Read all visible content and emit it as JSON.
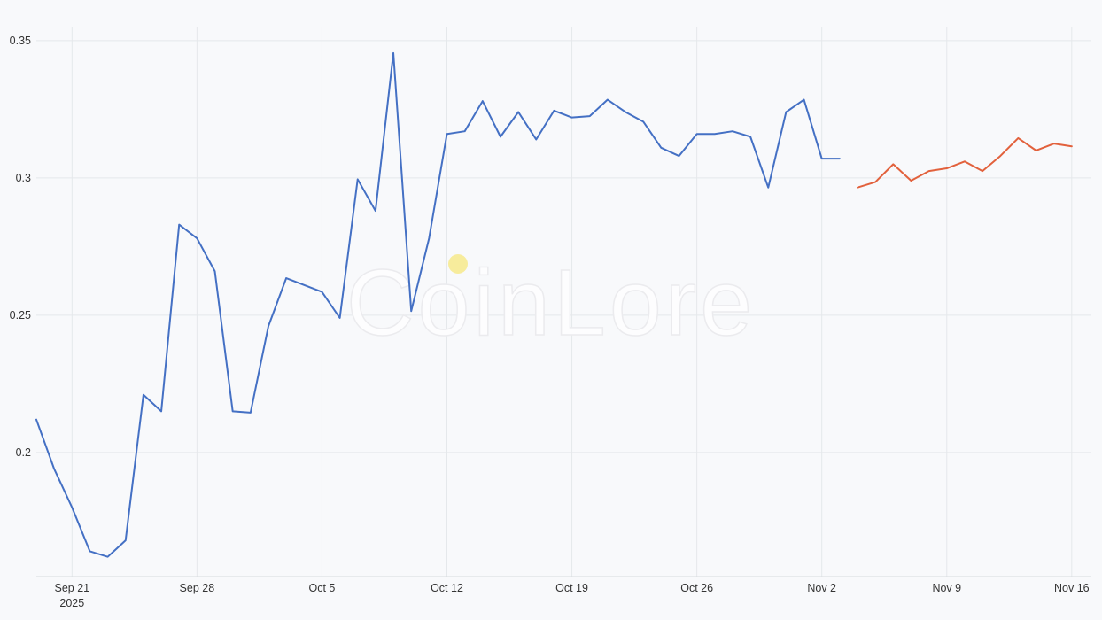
{
  "watermark": {
    "text": "CoinLore"
  },
  "chart_data": {
    "type": "line",
    "grid": true,
    "legend": "none",
    "y_axis": {
      "tick_values": [
        0.35,
        0.3,
        0.25,
        0.2
      ],
      "tick_labels": [
        "0.35",
        "0.3",
        "0.25",
        "0.2"
      ],
      "range": [
        0.1548,
        0.3548
      ]
    },
    "x_axis": {
      "tick_days": [
        2,
        9,
        16,
        23,
        30,
        37,
        44,
        51,
        58
      ],
      "tick_labels": [
        "Sep 21",
        "Sep 28",
        "Oct 5",
        "Oct 12",
        "Oct 19",
        "Oct 26",
        "Nov 2",
        "Nov 9",
        "Nov 16"
      ],
      "sub_label": "2025",
      "sub_label_tick_index": 0,
      "range_days": [
        0,
        59.1
      ]
    },
    "series": [
      {
        "name": "blue",
        "color": "#4470c4",
        "days": [
          0,
          1,
          2,
          3,
          4,
          5,
          6,
          7,
          8,
          9,
          10,
          11,
          12,
          13,
          14,
          15,
          16,
          17,
          18,
          19,
          20,
          21,
          22,
          23,
          24,
          25,
          26,
          27,
          28,
          29,
          30,
          31,
          32,
          33,
          34,
          35,
          36,
          37,
          38,
          39,
          40,
          41,
          42,
          43,
          44,
          45
        ],
        "values": [
          0.212,
          0.194,
          0.18,
          0.164,
          0.162,
          0.168,
          0.221,
          0.215,
          0.283,
          0.278,
          0.266,
          0.215,
          0.2145,
          0.246,
          0.2635,
          0.261,
          0.2585,
          0.249,
          0.2995,
          0.288,
          0.3455,
          0.2515,
          0.278,
          0.316,
          0.317,
          0.328,
          0.315,
          0.324,
          0.314,
          0.3245,
          0.322,
          0.3225,
          0.3285,
          0.324,
          0.3205,
          0.311,
          0.308,
          0.316,
          0.316,
          0.317,
          0.315,
          0.2965,
          0.324,
          0.3285,
          0.307,
          0.307
        ]
      },
      {
        "name": "orange",
        "color": "#e2613c",
        "days": [
          46,
          47,
          48,
          49,
          50,
          51,
          52,
          53,
          54,
          55,
          56,
          57,
          58
        ],
        "values": [
          0.2965,
          0.2985,
          0.305,
          0.299,
          0.3025,
          0.3035,
          0.306,
          0.3025,
          0.308,
          0.3145,
          0.31,
          0.3125,
          0.3115
        ]
      }
    ],
    "style": {
      "background": "#f8f9fb",
      "grid_color": "#e5e8eb",
      "axis_line_color": "#d6dadd",
      "tick_color": "#343434",
      "watermark_fill": "#fdfdfe",
      "watermark_stroke": "#ebebee",
      "watermark_dot_color": "#f6e985"
    }
  }
}
